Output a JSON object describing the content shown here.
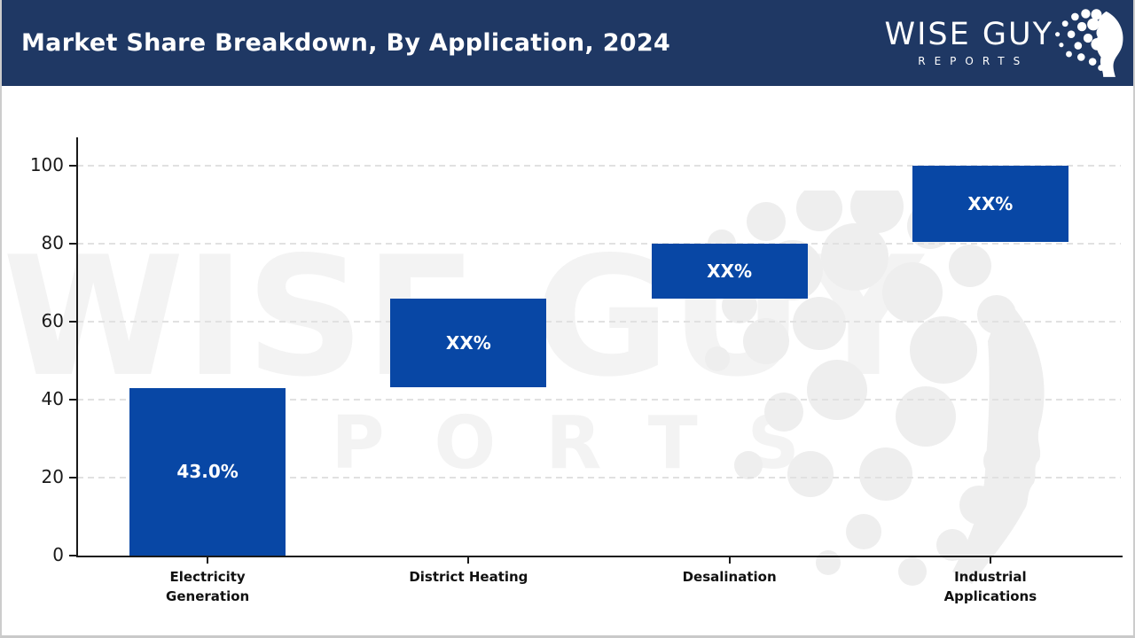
{
  "header": {
    "title": "Market Share Breakdown, By Application, 2024",
    "logo": {
      "line1": "WISE GUY",
      "line2": "REPORTS"
    }
  },
  "watermark": {
    "line1": "WISE GUY",
    "line2": "REPORTS"
  },
  "colors": {
    "header_bg": "#1f3864",
    "bar": "#0847a5",
    "bar_label": "#ffffff",
    "grid": "#e1e1e1",
    "axis": "#1a1a1a",
    "watermark": "#f3f3f3"
  },
  "chart_data": {
    "type": "bar",
    "subtype": "waterfall",
    "title": "Market Share Breakdown, By Application, 2024",
    "xlabel": "",
    "ylabel": "",
    "ylim": [
      0,
      105
    ],
    "yticks": [
      0,
      20,
      40,
      60,
      80,
      100
    ],
    "grid": "horizontal-dashed",
    "legend": "none",
    "bar_color": "#0847a5",
    "categories": [
      "Electricity\nGeneration",
      "District Heating",
      "Desalination",
      "Industrial\nApplications"
    ],
    "segments": [
      {
        "category": "Electricity Generation",
        "start": 0,
        "end": 43.0,
        "label": "43.0%"
      },
      {
        "category": "District Heating",
        "start": 43.2,
        "end": 65.8,
        "label": "XX%"
      },
      {
        "category": "Desalination",
        "start": 66.0,
        "end": 80.0,
        "label": "XX%"
      },
      {
        "category": "Industrial Applications",
        "start": 80.5,
        "end": 100.0,
        "label": "XX%"
      }
    ]
  }
}
